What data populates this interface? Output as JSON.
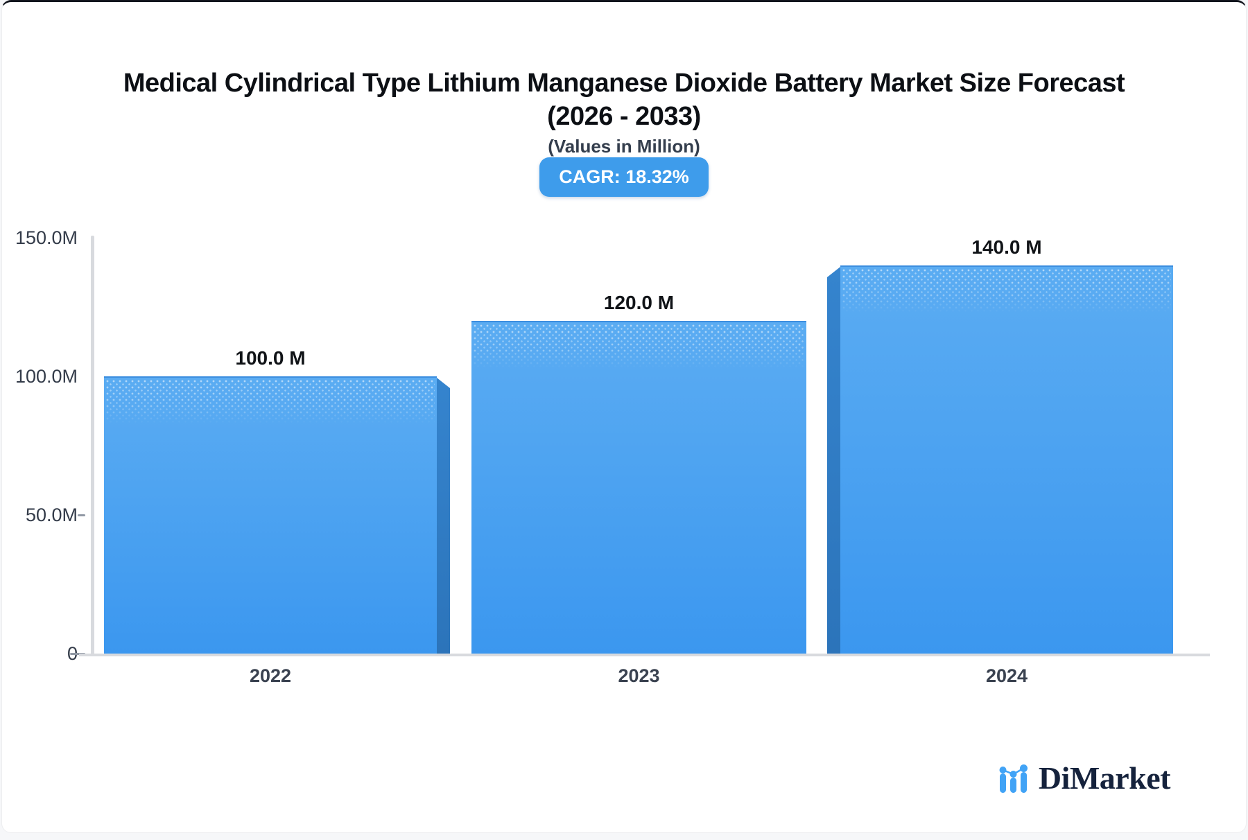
{
  "header": {
    "title_line1": "Medical Cylindrical Type Lithium Manganese Dioxide Battery Market Size Forecast",
    "title_line2": "(2026 - 2033)",
    "subtitle": "(Values in Million)",
    "cagr_badge_label": "CAGR: 18.32%"
  },
  "brand": {
    "name": "DiMarket",
    "icon": "bar-line-chart-logo-icon",
    "icon_color": "#41a3f6",
    "text_color": "#15223c"
  },
  "colors": {
    "bar_fill": "#4da3f1",
    "bar_side_3d": "#2e7bc3",
    "badge_background": "#3e9ceb",
    "axis_line": "#d8dade",
    "title_text": "#0c0f14",
    "axis_text": "#333b49",
    "card_top_border": "#12151d",
    "page_background": "#f6f7f9"
  },
  "chart_data": {
    "type": "bar",
    "title": "Medical Cylindrical Type Lithium Manganese Dioxide Battery Market Size Forecast (2026 - 2033)",
    "subtitle": "(Values in Million)",
    "unit": "Million",
    "cagr_percent": 18.32,
    "categories": [
      "2022",
      "2023",
      "2024"
    ],
    "values": [
      100,
      120,
      140
    ],
    "value_labels": [
      "100.0 M",
      "120.0 M",
      "140.0 M"
    ],
    "xlabel": "",
    "ylabel": "",
    "ylim": [
      0,
      150
    ],
    "y_ticks": [
      {
        "label": "0",
        "value": 0,
        "dash": true
      },
      {
        "label": "50.0M",
        "value": 50,
        "dash": true
      },
      {
        "label": "100.0M",
        "value": 100,
        "dash": false
      },
      {
        "label": "150.0M",
        "value": 150,
        "dash": false
      }
    ],
    "grid": false,
    "legend": false
  }
}
